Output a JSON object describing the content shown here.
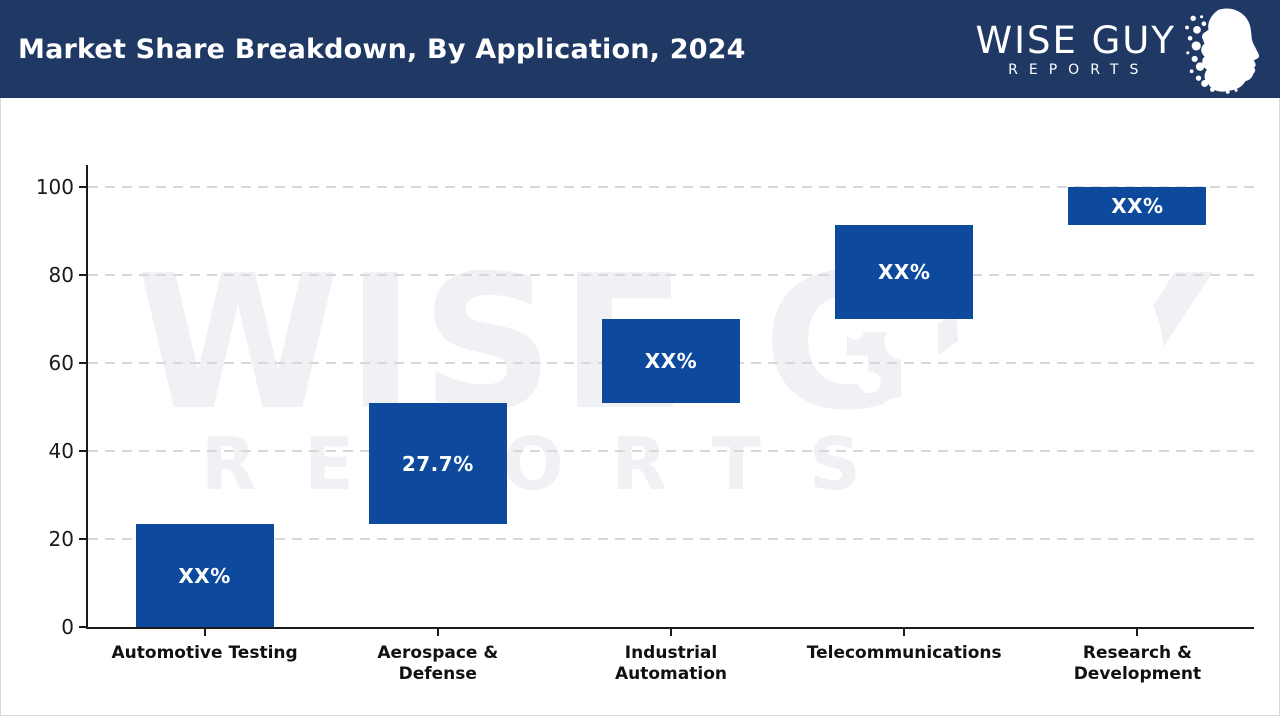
{
  "header": {
    "title": "Market Share Breakdown, By Application, 2024",
    "logo": {
      "name": "WISE GUY",
      "subname": "REPORTS"
    }
  },
  "watermark": {
    "line1": "WISE GUY",
    "line2": "REPORTS"
  },
  "chart_data": {
    "type": "bar",
    "subtype": "floating-waterfall",
    "title": "Market Share Breakdown, By Application, 2024",
    "categories": [
      "Automotive Testing",
      "Aerospace & Defense",
      "Industrial Automation",
      "Telecommunications",
      "Research & Development"
    ],
    "bars": [
      {
        "category": "Automotive Testing",
        "category_display": "Automotive Testing",
        "start": 0,
        "end": 23.3,
        "label": "XX%"
      },
      {
        "category": "Aerospace & Defense",
        "category_display": "Aerospace &\nDefense",
        "start": 23.3,
        "end": 51.0,
        "label": "27.7%"
      },
      {
        "category": "Industrial Automation",
        "category_display": "Industrial\nAutomation",
        "start": 51.0,
        "end": 70.0,
        "label": "XX%"
      },
      {
        "category": "Telecommunications",
        "category_display": "Telecommunications",
        "start": 70.0,
        "end": 91.3,
        "label": "XX%"
      },
      {
        "category": "Research & Development",
        "category_display": "Research &\nDevelopment",
        "start": 91.3,
        "end": 100.0,
        "label": "XX%"
      }
    ],
    "xlabel": "",
    "ylabel": "",
    "ylim": [
      0,
      105
    ],
    "yticks": [
      0,
      20,
      40,
      60,
      80,
      100
    ],
    "grid": {
      "horizontal": true,
      "style": "dashed"
    },
    "legend": "none"
  },
  "colors": {
    "header_bg": "#1f3864",
    "bar_fill": "#0d4a9e",
    "bar_label": "#ffffff",
    "axis": "#1a1a1a",
    "gridline": "#d8d8d8",
    "card_border": "#d9d9d9",
    "watermark": "#f0f1f4"
  }
}
